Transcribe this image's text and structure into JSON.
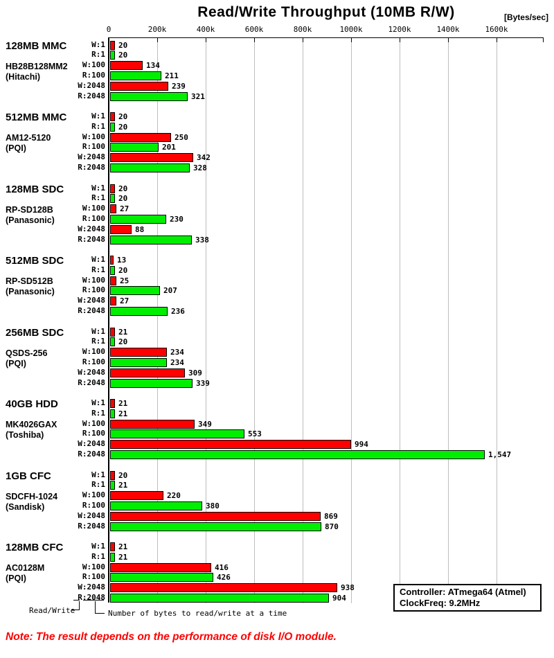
{
  "title": "Read/Write Throughput (10MB R/W)",
  "unit_label": "[Bytes/sec]",
  "chart_data": {
    "type": "bar",
    "orientation": "horizontal",
    "title": "Read/Write Throughput (10MB R/W)",
    "value_unit": "Bytes/sec (axis in thousands, bar values labeled in k)",
    "x_axis": {
      "tick_labels": [
        "0",
        "200k",
        "400k",
        "600k",
        "800k",
        "1000k",
        "1200k",
        "1400k",
        "1600k"
      ],
      "min": 0,
      "max": 1600,
      "gridlines": true
    },
    "row_labels": [
      "W:1",
      "R:1",
      "W:100",
      "R:100",
      "W:2048",
      "R:2048"
    ],
    "bar_colors": {
      "write": "#ff0000",
      "read": "#00ee00"
    },
    "groups": [
      {
        "name": "128MB MMC",
        "model": "HB28B128MM2",
        "maker": "(Hitachi)",
        "values": [
          20,
          20,
          134,
          211,
          239,
          321
        ],
        "value_labels": [
          "20",
          "20",
          "134",
          "211",
          "239",
          "321"
        ]
      },
      {
        "name": "512MB MMC",
        "model": "AM12-5120",
        "maker": "(PQI)",
        "values": [
          20,
          20,
          250,
          201,
          342,
          328
        ],
        "value_labels": [
          "20",
          "20",
          "250",
          "201",
          "342",
          "328"
        ]
      },
      {
        "name": "128MB SDC",
        "model": "RP-SD128B",
        "maker": "(Panasonic)",
        "values": [
          20,
          20,
          27,
          230,
          88,
          338
        ],
        "value_labels": [
          "20",
          "20",
          "27",
          "230",
          "88",
          "338"
        ]
      },
      {
        "name": "512MB SDC",
        "model": "RP-SD512B",
        "maker": "(Panasonic)",
        "values": [
          13,
          20,
          25,
          207,
          27,
          236
        ],
        "value_labels": [
          "13",
          "20",
          "25",
          "207",
          "27",
          "236"
        ]
      },
      {
        "name": "256MB SDC",
        "model": "QSDS-256",
        "maker": "(PQI)",
        "values": [
          21,
          20,
          234,
          234,
          309,
          339
        ],
        "value_labels": [
          "21",
          "20",
          "234",
          "234",
          "309",
          "339"
        ]
      },
      {
        "name": "40GB HDD",
        "model": "MK4026GAX",
        "maker": "(Toshiba)",
        "values": [
          21,
          21,
          349,
          553,
          994,
          1547
        ],
        "value_labels": [
          "21",
          "21",
          "349",
          "553",
          "994",
          "1,547"
        ]
      },
      {
        "name": "1GB CFC",
        "model": "SDCFH-1024",
        "maker": "(Sandisk)",
        "values": [
          20,
          21,
          220,
          380,
          869,
          870
        ],
        "value_labels": [
          "20",
          "21",
          "220",
          "380",
          "869",
          "870"
        ]
      },
      {
        "name": "128MB CFC",
        "model": "AC0128M",
        "maker": "(PQI)",
        "values": [
          21,
          21,
          416,
          426,
          938,
          904
        ],
        "value_labels": [
          "21",
          "21",
          "416",
          "426",
          "938",
          "904"
        ]
      }
    ]
  },
  "legend": {
    "read_write": "Read/Write",
    "bytes_note": "Number of bytes to read/write at a time"
  },
  "info_box": {
    "line1": "Controller: ATmega64 (Atmel)",
    "line2": "ClockFreq: 9.2MHz"
  },
  "note": "Note: The result depends on the performance of disk I/O module.",
  "colors": {
    "write_bar": "#ff0000",
    "read_bar": "#00ee00",
    "gridline": "#bdbdbd",
    "note_text": "#ff0000"
  }
}
